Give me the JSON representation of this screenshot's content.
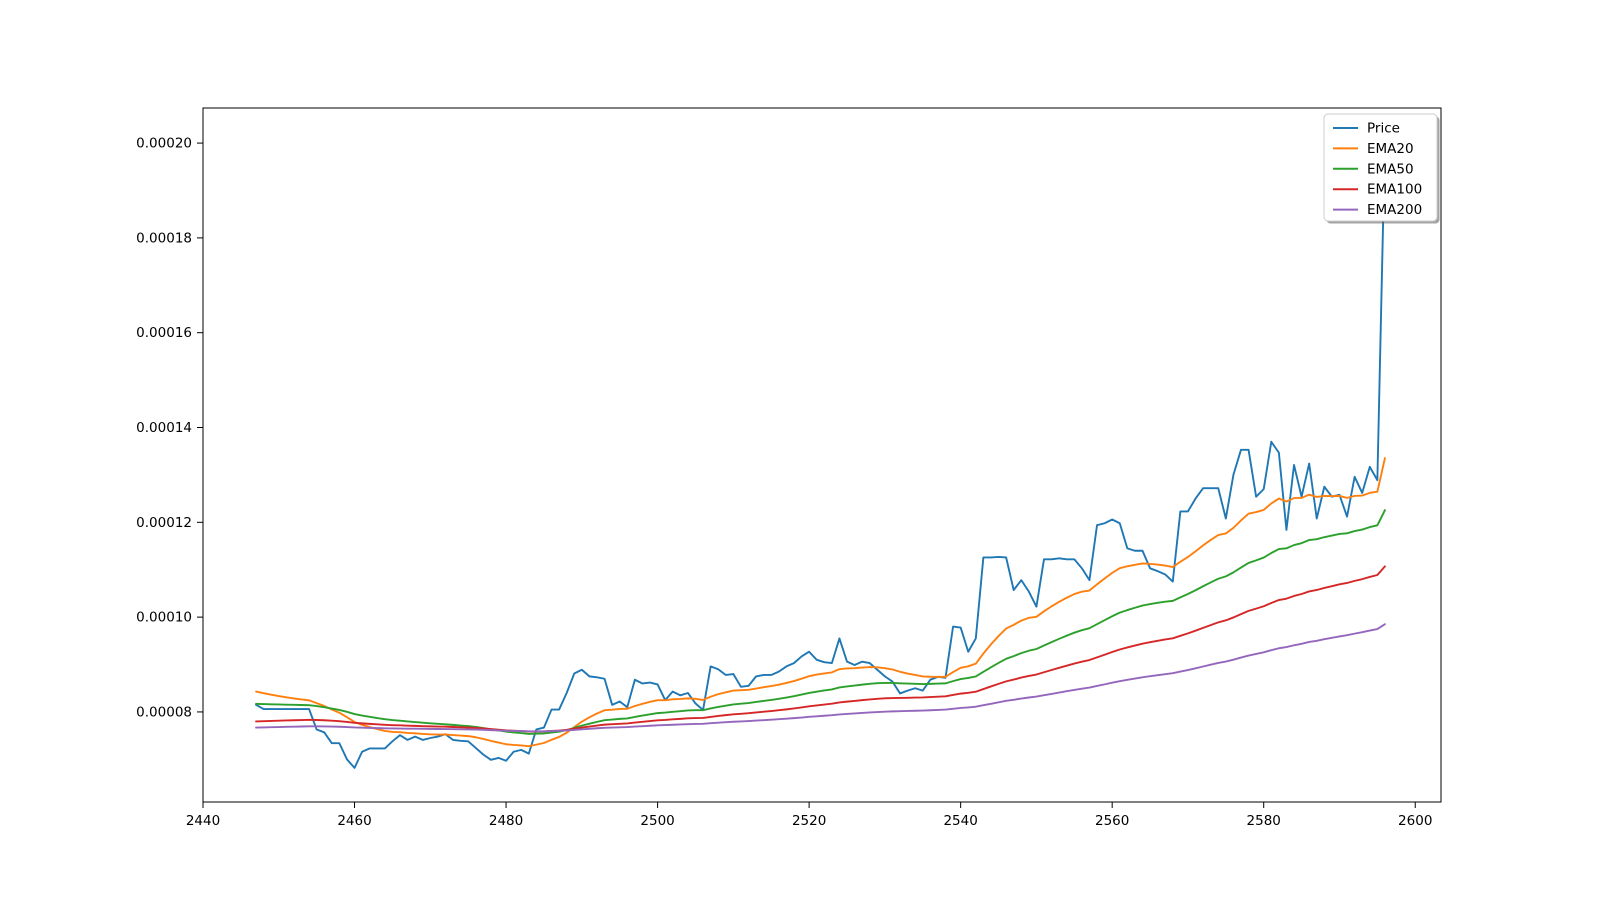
{
  "figure": {
    "background": "#ffffff"
  },
  "chart_data": {
    "type": "line",
    "title": "",
    "xlabel": "",
    "ylabel": "",
    "grid": false,
    "legend_position": "upper right",
    "xlim": [
      2440,
      2603.4
    ],
    "ylim": [
      6.1e-05,
      0.0002074
    ],
    "x_ticks": [
      2440,
      2460,
      2480,
      2500,
      2520,
      2540,
      2560,
      2580,
      2600
    ],
    "x_tick_labels": [
      "2440",
      "2460",
      "2480",
      "2500",
      "2520",
      "2540",
      "2560",
      "2580",
      "2600"
    ],
    "y_tick_values": [
      8e-05,
      0.0001,
      0.00012,
      0.00014,
      0.00016,
      0.00018,
      0.0002
    ],
    "y_tick_labels": [
      "0.00008",
      "0.00010",
      "0.00012",
      "0.00014",
      "0.00016",
      "0.00018",
      "0.00020"
    ],
    "x_start": 2447,
    "x_step": 1,
    "series": [
      {
        "name": "Price",
        "color": "#1f77b4",
        "type": "raw",
        "values": [
          8.15e-05,
          8.06e-05,
          8.06e-05,
          8.06e-05,
          8.06e-05,
          8.06e-05,
          8.06e-05,
          8.06e-05,
          7.63e-05,
          7.57e-05,
          7.34e-05,
          7.34e-05,
          7e-05,
          6.82e-05,
          7.16e-05,
          7.23e-05,
          7.23e-05,
          7.23e-05,
          7.38e-05,
          7.51e-05,
          7.41e-05,
          7.48e-05,
          7.41e-05,
          7.45e-05,
          7.48e-05,
          7.53e-05,
          7.41e-05,
          7.39e-05,
          7.38e-05,
          7.24e-05,
          7.1e-05,
          6.99e-05,
          7.03e-05,
          6.97e-05,
          7.16e-05,
          7.2e-05,
          7.12e-05,
          7.63e-05,
          7.67e-05,
          8.05e-05,
          8.05e-05,
          8.4e-05,
          8.81e-05,
          8.89e-05,
          8.75e-05,
          8.73e-05,
          8.7e-05,
          8.15e-05,
          8.22e-05,
          8.1e-05,
          8.68e-05,
          8.6e-05,
          8.62e-05,
          8.58e-05,
          8.25e-05,
          8.43e-05,
          8.35e-05,
          8.4e-05,
          8.18e-05,
          8.04e-05,
          8.96e-05,
          8.9e-05,
          8.78e-05,
          8.8e-05,
          8.53e-05,
          8.55e-05,
          8.75e-05,
          8.78e-05,
          8.78e-05,
          8.85e-05,
          8.96e-05,
          9.03e-05,
          9.17e-05,
          9.27e-05,
          9.1e-05,
          9.05e-05,
          9.03e-05,
          9.55e-05,
          9.06e-05,
          8.99e-05,
          9.06e-05,
          9.03e-05,
          8.89e-05,
          8.75e-05,
          8.64e-05,
          8.39e-05,
          8.45e-05,
          8.5e-05,
          8.45e-05,
          8.68e-05,
          8.74e-05,
          8.72e-05,
          9.8e-05,
          9.78e-05,
          9.27e-05,
          9.55e-05,
          0.0001126,
          0.0001126,
          0.0001127,
          0.0001126,
          0.0001057,
          0.0001078,
          0.0001054,
          0.0001022,
          0.0001122,
          0.0001122,
          0.0001124,
          0.0001122,
          0.0001122,
          0.0001103,
          0.0001078,
          0.0001194,
          0.0001198,
          0.0001206,
          0.0001198,
          0.0001145,
          0.000114,
          0.000114,
          0.0001103,
          0.0001097,
          0.000109,
          0.0001075,
          0.0001223,
          0.0001223,
          0.000125,
          0.0001272,
          0.0001272,
          0.0001272,
          0.0001208,
          0.00013,
          0.0001353,
          0.0001353,
          0.0001254,
          0.000127,
          0.000137,
          0.0001347,
          0.0001184,
          0.0001321,
          0.0001254,
          0.0001324,
          0.0001208,
          0.0001275,
          0.0001254,
          0.0001258,
          0.0001212,
          0.0001296,
          0.0001262,
          0.0001317,
          0.0001289,
          0.0002007
        ]
      },
      {
        "name": "EMA20",
        "color": "#ff7f0e",
        "type": "ema",
        "period": 20,
        "seed": 8.43e-05,
        "derived_from": "Price"
      },
      {
        "name": "EMA50",
        "color": "#2ca02c",
        "type": "ema",
        "period": 50,
        "seed": 8.17e-05,
        "derived_from": "Price"
      },
      {
        "name": "EMA100",
        "color": "#d62728",
        "type": "ema",
        "period": 100,
        "seed": 7.8e-05,
        "derived_from": "Price"
      },
      {
        "name": "EMA200",
        "color": "#9467bd",
        "type": "ema",
        "period": 200,
        "seed": 7.67e-05,
        "derived_from": "Price"
      }
    ],
    "legend_labels": [
      "Price",
      "EMA20",
      "EMA50",
      "EMA100",
      "EMA200"
    ]
  },
  "style_colors": {
    "spine": "#000000",
    "tick_label": "#000000",
    "legend_border": "#cccccc",
    "legend_bg": "#ffffff",
    "legend_shadow": "#595959",
    "legend_text": "#000000"
  }
}
